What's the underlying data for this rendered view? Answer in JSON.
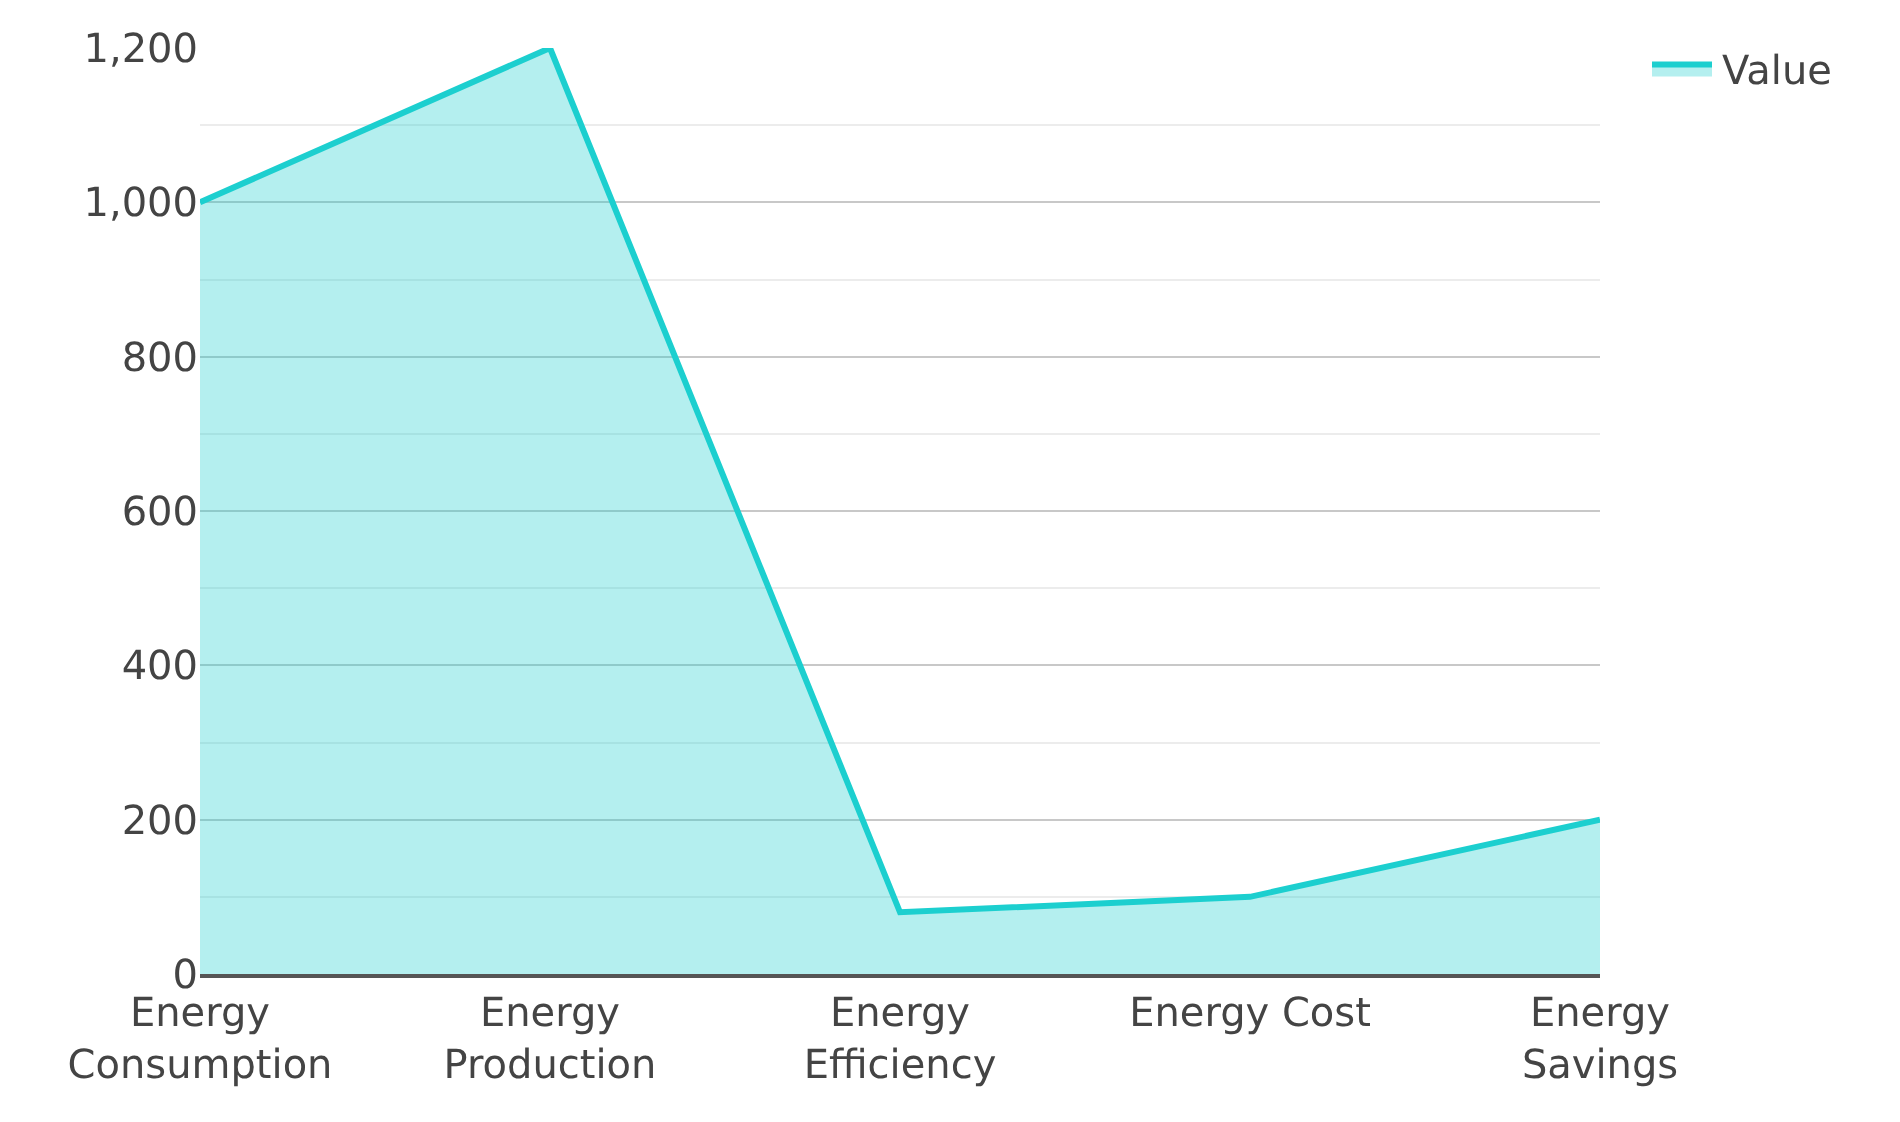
{
  "chart_data": {
    "type": "area",
    "categories": [
      "Energy Consumption",
      "Energy Production",
      "Energy Efficiency",
      "Energy Cost",
      "Energy Savings"
    ],
    "series": [
      {
        "name": "Value",
        "color": "#1ccfcf",
        "values": [
          1000,
          1200,
          80,
          100,
          200
        ]
      }
    ],
    "ylim": [
      0,
      1200
    ],
    "yticks": [
      {
        "value": 0,
        "label": "0"
      },
      {
        "value": 200,
        "label": "200"
      },
      {
        "value": 400,
        "label": "400"
      },
      {
        "value": 600,
        "label": "600"
      },
      {
        "value": 800,
        "label": "800"
      },
      {
        "value": 1000,
        "label": "1,000"
      },
      {
        "value": 1200,
        "label": "1,200"
      }
    ],
    "grid": "y",
    "legend": "top right"
  }
}
